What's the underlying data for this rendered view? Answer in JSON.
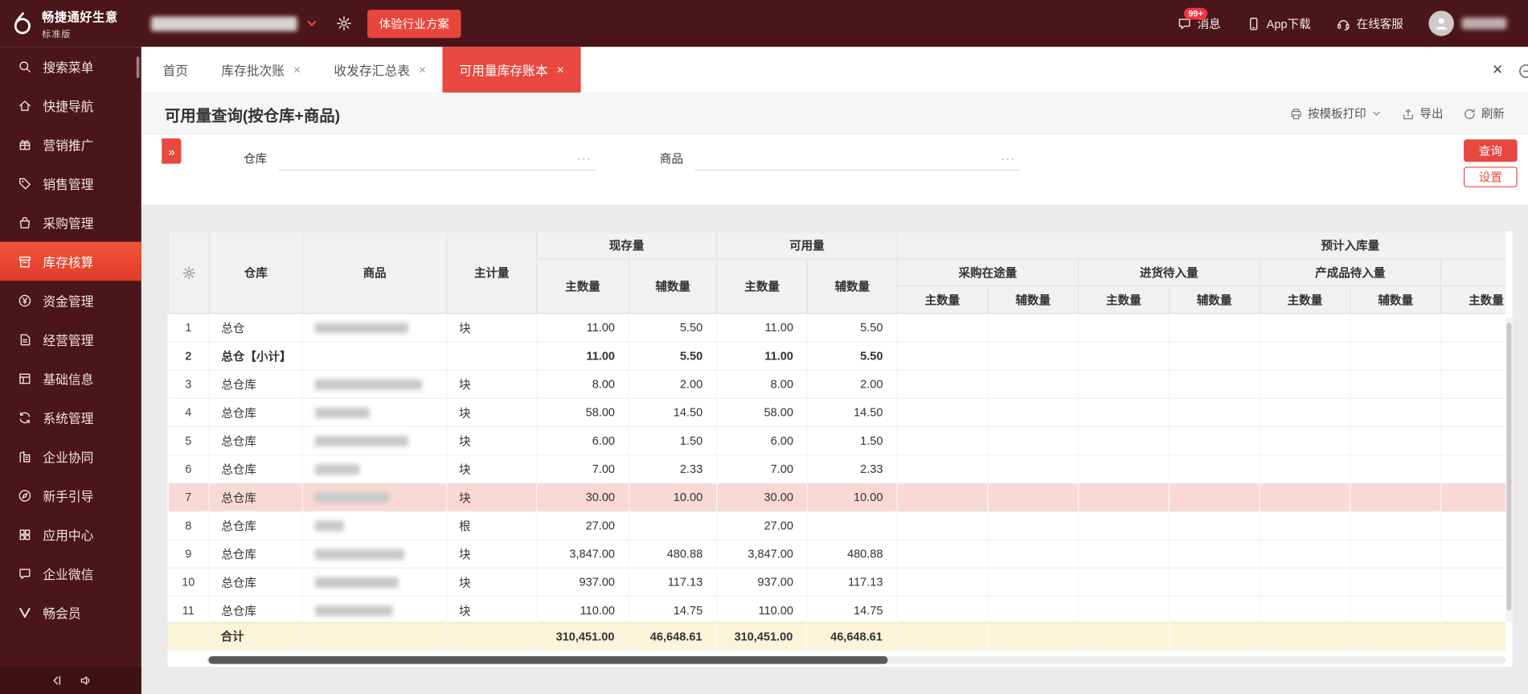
{
  "colors": {
    "accent_red": "#e8483f",
    "topbar_bg": "#4a161b",
    "active_tab_bg": "#e8483f",
    "highlight_row_bg": "#f8d9d6",
    "total_row_bg": "#fcf4d8"
  },
  "topbar": {
    "logo_title": "畅捷通好生意",
    "logo_badge": "标准版",
    "trial_button": "体验行业方案",
    "messages": "消息",
    "messages_badge": "99+",
    "app_download": "App下载",
    "online_service": "在线客服"
  },
  "sidebar": {
    "items": [
      {
        "id": "search-menu",
        "label": "搜索菜单",
        "icon": "search"
      },
      {
        "id": "quick-nav",
        "label": "快捷导航",
        "icon": "home"
      },
      {
        "id": "marketing",
        "label": "营销推广",
        "icon": "gift"
      },
      {
        "id": "sales",
        "label": "销售管理",
        "icon": "sales"
      },
      {
        "id": "purchase",
        "label": "采购管理",
        "icon": "purchase"
      },
      {
        "id": "inventory-accounting",
        "label": "库存核算",
        "icon": "inventory",
        "active": true
      },
      {
        "id": "funds",
        "label": "资金管理",
        "icon": "funds"
      },
      {
        "id": "operation",
        "label": "经营管理",
        "icon": "operation"
      },
      {
        "id": "base-info",
        "label": "基础信息",
        "icon": "baseinfo"
      },
      {
        "id": "system",
        "label": "系统管理",
        "icon": "system"
      },
      {
        "id": "enterprise-collab",
        "label": "企业协同",
        "icon": "collab"
      },
      {
        "id": "beginner-guide",
        "label": "新手引导",
        "icon": "guide"
      },
      {
        "id": "app-center",
        "label": "应用中心",
        "icon": "appcenter"
      },
      {
        "id": "wecom",
        "label": "企业微信",
        "icon": "wecom"
      },
      {
        "id": "member",
        "label": "畅会员",
        "icon": "member"
      }
    ]
  },
  "tabbar": {
    "tabs": [
      {
        "label": "首页",
        "closable": false,
        "active": false
      },
      {
        "label": "库存批次账",
        "closable": true,
        "active": false
      },
      {
        "label": "收发存汇总表",
        "closable": true,
        "active": false
      },
      {
        "label": "可用量库存账本",
        "closable": true,
        "active": true
      }
    ]
  },
  "page_header": {
    "title": "可用量查询(按仓库+商品)",
    "print_label": "按模板打印",
    "export_label": "导出",
    "refresh_label": "刷新"
  },
  "filters": {
    "warehouse_label": "仓库",
    "product_label": "商品",
    "more_dots": "···",
    "query_button": "查询",
    "settings_button": "设置"
  },
  "table": {
    "header": {
      "warehouse": "仓库",
      "product": "商品",
      "main_unit": "主计量",
      "group_onhand": "现存量",
      "group_available": "可用量",
      "group_expected_in": "预计入库量",
      "sub_purchase_transit": "采购在途量",
      "sub_receipt_pending": "进货待入量",
      "sub_finished_pending": "产成品待入量",
      "main_qty": "主数量",
      "aux_qty": "辅数量"
    },
    "rows": [
      {
        "seq": "1",
        "warehouse": "总仓",
        "product_blur_w": 96,
        "unit": "块",
        "onhand_main": "11.00",
        "onhand_aux": "5.50",
        "avail_main": "11.00",
        "avail_aux": "5.50"
      },
      {
        "seq": "2",
        "warehouse": "总仓【小计】",
        "product_blur_w": 0,
        "unit": "",
        "onhand_main": "11.00",
        "onhand_aux": "5.50",
        "avail_main": "11.00",
        "avail_aux": "5.50",
        "subtotal": true
      },
      {
        "seq": "3",
        "warehouse": "总仓库",
        "product_blur_w": 110,
        "unit": "块",
        "onhand_main": "8.00",
        "onhand_aux": "2.00",
        "avail_main": "8.00",
        "avail_aux": "2.00"
      },
      {
        "seq": "4",
        "warehouse": "总仓库",
        "product_blur_w": 56,
        "unit": "块",
        "onhand_main": "58.00",
        "onhand_aux": "14.50",
        "avail_main": "58.00",
        "avail_aux": "14.50"
      },
      {
        "seq": "5",
        "warehouse": "总仓库",
        "product_blur_w": 96,
        "unit": "块",
        "onhand_main": "6.00",
        "onhand_aux": "1.50",
        "avail_main": "6.00",
        "avail_aux": "1.50"
      },
      {
        "seq": "6",
        "warehouse": "总仓库",
        "product_blur_w": 46,
        "unit": "块",
        "onhand_main": "7.00",
        "onhand_aux": "2.33",
        "avail_main": "7.00",
        "avail_aux": "2.33"
      },
      {
        "seq": "7",
        "warehouse": "总仓库",
        "product_blur_w": 76,
        "unit": "块",
        "onhand_main": "30.00",
        "onhand_aux": "10.00",
        "avail_main": "30.00",
        "avail_aux": "10.00",
        "highlight": true
      },
      {
        "seq": "8",
        "warehouse": "总仓库",
        "product_blur_w": 30,
        "unit": "根",
        "onhand_main": "27.00",
        "onhand_aux": "",
        "avail_main": "27.00",
        "avail_aux": ""
      },
      {
        "seq": "9",
        "warehouse": "总仓库",
        "product_blur_w": 92,
        "unit": "块",
        "onhand_main": "3,847.00",
        "onhand_aux": "480.88",
        "avail_main": "3,847.00",
        "avail_aux": "480.88"
      },
      {
        "seq": "10",
        "warehouse": "总仓库",
        "product_blur_w": 86,
        "unit": "块",
        "onhand_main": "937.00",
        "onhand_aux": "117.13",
        "avail_main": "937.00",
        "avail_aux": "117.13"
      },
      {
        "seq": "11",
        "warehouse": "总仓库",
        "product_blur_w": 80,
        "unit": "块",
        "onhand_main": "110.00",
        "onhand_aux": "14.75",
        "avail_main": "110.00",
        "avail_aux": "14.75"
      }
    ],
    "total": {
      "label": "合计",
      "onhand_main": "310,451.00",
      "onhand_aux": "46,648.61",
      "avail_main": "310,451.00",
      "avail_aux": "46,648.61"
    }
  }
}
